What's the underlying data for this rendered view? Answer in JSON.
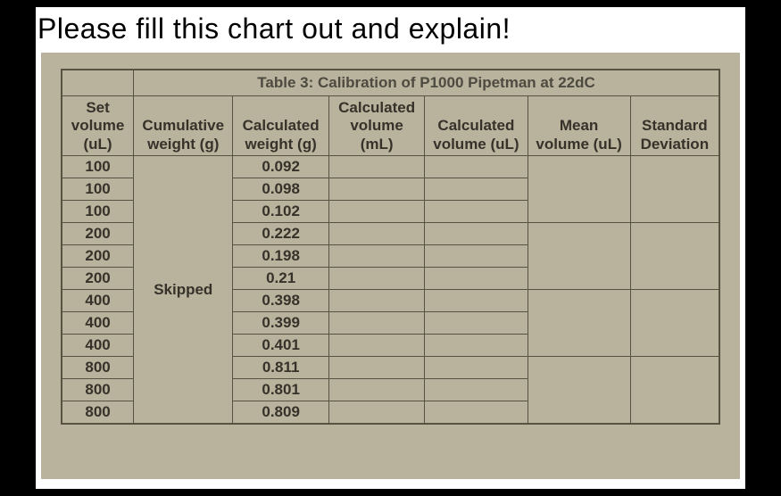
{
  "heading": "Please fill this chart out and explain!",
  "tableTitle": "Table 3: Calibration of P1000 Pipetman at 22dC",
  "headers": {
    "c1": "Set volume (uL)",
    "c2": "Cumulative weight (g)",
    "c3": "Calculated weight (g)",
    "c4": "Calculated volume (mL)",
    "c5": "Calculated volume (uL)",
    "c6": "Mean volume (uL)",
    "c7": "Standard Deviation"
  },
  "skipped": "Skipped",
  "rows": [
    {
      "set": "100",
      "cw": "0.092"
    },
    {
      "set": "100",
      "cw": "0.098"
    },
    {
      "set": "100",
      "cw": "0.102"
    },
    {
      "set": "200",
      "cw": "0.222"
    },
    {
      "set": "200",
      "cw": "0.198"
    },
    {
      "set": "200",
      "cw": "0.21"
    },
    {
      "set": "400",
      "cw": "0.398"
    },
    {
      "set": "400",
      "cw": "0.399"
    },
    {
      "set": "400",
      "cw": "0.401"
    },
    {
      "set": "800",
      "cw": "0.811"
    },
    {
      "set": "800",
      "cw": "0.801"
    },
    {
      "set": "800",
      "cw": "0.809"
    }
  ],
  "colors": {
    "pageBg": "#000000",
    "panelBg": "#ffffff",
    "paperBg": "#b9b29d",
    "border": "#585243",
    "text": "#36322a"
  }
}
